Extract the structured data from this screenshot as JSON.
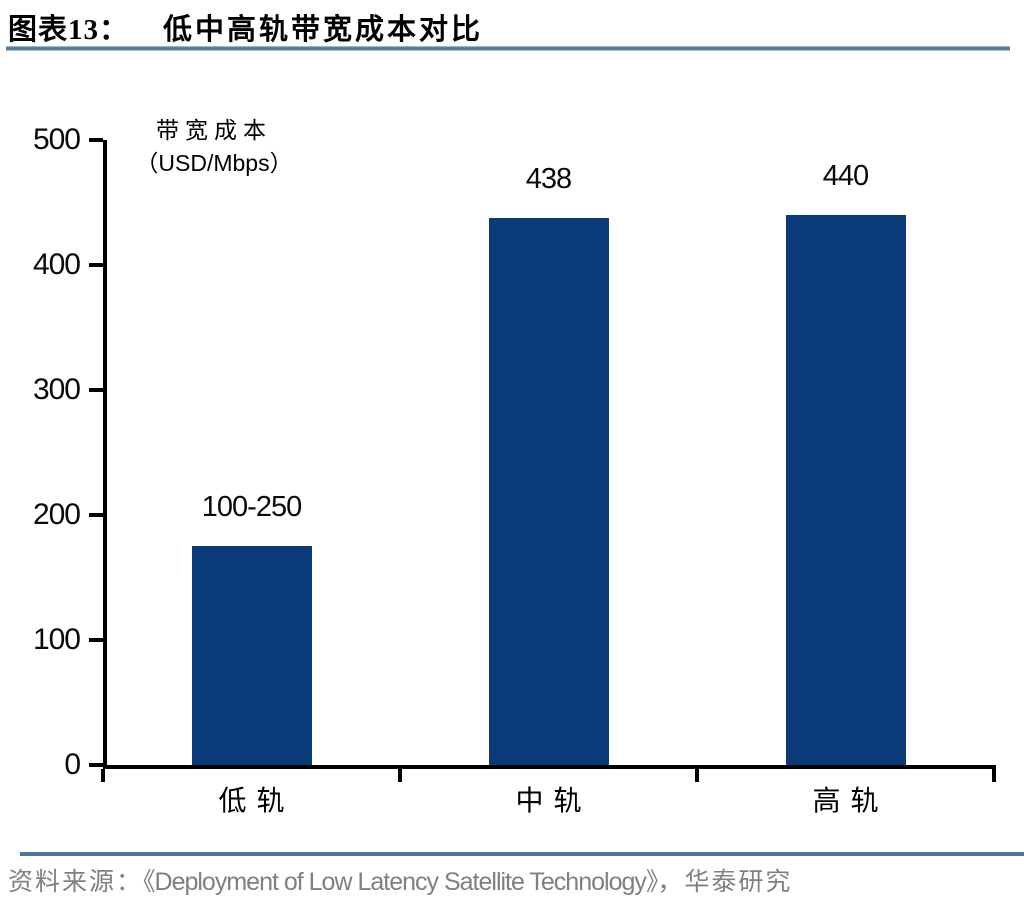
{
  "header": {
    "figure_label": "图表13：",
    "figure_title": "低中高轨带宽成本对比"
  },
  "chart_data": {
    "type": "bar",
    "title": "低中高轨带宽成本对比",
    "ylabel_line1": "带宽成本",
    "ylabel_line2": "（USD/Mbps）",
    "categories": [
      "低轨",
      "中轨",
      "高轨"
    ],
    "values": [
      175,
      438,
      440
    ],
    "value_labels": [
      "100-250",
      "438",
      "440"
    ],
    "ylim": [
      0,
      500
    ],
    "yticks": [
      0,
      100,
      200,
      300,
      400,
      500
    ],
    "bar_color": "#0a3a78",
    "grid": false,
    "legend": false
  },
  "footer": {
    "source_label": "资料来源：",
    "source_work": "《Deployment of Low Latency Satellite Technology》",
    "source_org": "，华泰研究"
  },
  "colors": {
    "bar": "#0a3a78",
    "header_rule": "#56799f",
    "footer_rule": "#50749d",
    "axis": "#000000",
    "source_text": "#808080"
  }
}
